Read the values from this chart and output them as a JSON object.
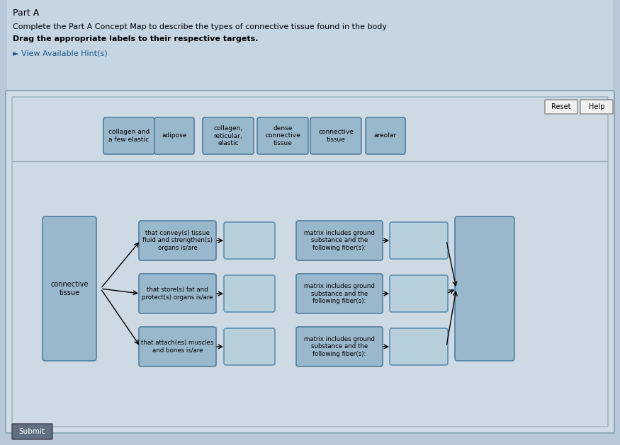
{
  "title": "Part A",
  "subtitle": "Complete the Part A Concept Map to describe the types of connective tissue found in the body",
  "instruction": "Drag the appropriate labels to their respective targets.",
  "hint_text": "► View Available Hint(s)",
  "bg_color": "#c8d8e8",
  "outer_bg": "#b8c8d8",
  "inner_bg": "#d8e4ec",
  "box_fill": "#a8c0d0",
  "box_border": "#6090b0",
  "label_fill": "#b0ccd8",
  "white_box_fill": "#c8dce8",
  "button_fill": "#e8e8e8",
  "submit_fill": "#7090a0",
  "top_labels": [
    "collagen and\na few elastic",
    "adipose",
    "collagen,\nreticular,\nelastic",
    "dense\nconnective\ntissue",
    "connective\ntissue",
    "areolar"
  ],
  "left_label": "connective\ntissue",
  "row_labels": [
    "that convey(s) tissue\nfluid and strengthen(s)\norgans is/are",
    "that store(s) fat and\nprotect(s) organs is/are",
    "that attach(es) muscles\nand bones is/are"
  ],
  "matrix_labels": [
    "matrix includes ground\nsubstance and the\nfollowing fiber(s):",
    "matrix includes ground\nsubstance and the\nfollowing fiber(s):",
    "matrix includes ground\nsubstance and the\nfollowing fiber(s):"
  ],
  "reset_text": "Reset",
  "help_text": "Help",
  "submit_text": "Submit"
}
